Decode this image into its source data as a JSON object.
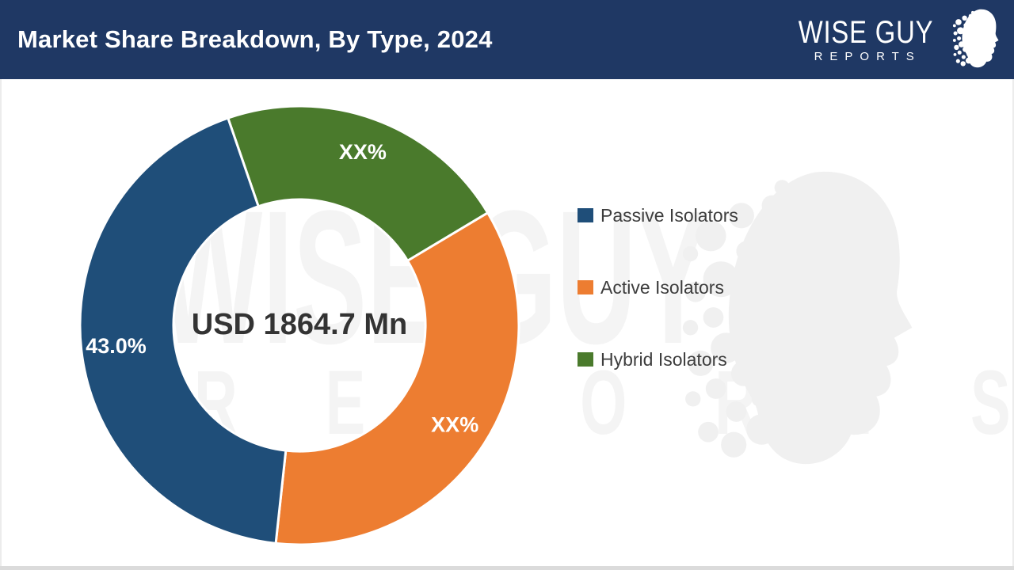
{
  "header": {
    "title": "Market Share Breakdown, By Type, 2024",
    "bg_color": "#1F3864",
    "logo": {
      "line1": "WISE GUY",
      "line2": "REPORTS"
    }
  },
  "watermark": {
    "line1": "WISE GUY",
    "line2": "R E P O R T S"
  },
  "chart_data": {
    "type": "pie",
    "variant": "donut",
    "title": "Market Share Breakdown, By Type, 2024",
    "center_label": "USD 1864.7 Mn",
    "start_angle_deg": -19,
    "legend_position": "right",
    "slices": [
      {
        "label": "Hybrid Isolators",
        "display_label": "XX%",
        "value_pct": 21.7,
        "color": "#4A7A2C"
      },
      {
        "label": "Active Isolators",
        "display_label": "XX%",
        "value_pct": 35.3,
        "color": "#ED7D31"
      },
      {
        "label": "Passive Isolators",
        "display_label": "43.0%",
        "value_pct": 43.0,
        "color": "#1F4E79"
      }
    ]
  },
  "legend": {
    "items": [
      {
        "label": "Passive Isolators",
        "color": "#1F4E79"
      },
      {
        "label": "Active Isolators",
        "color": "#ED7D31"
      },
      {
        "label": "Hybrid Isolators",
        "color": "#4A7A2C"
      }
    ]
  }
}
